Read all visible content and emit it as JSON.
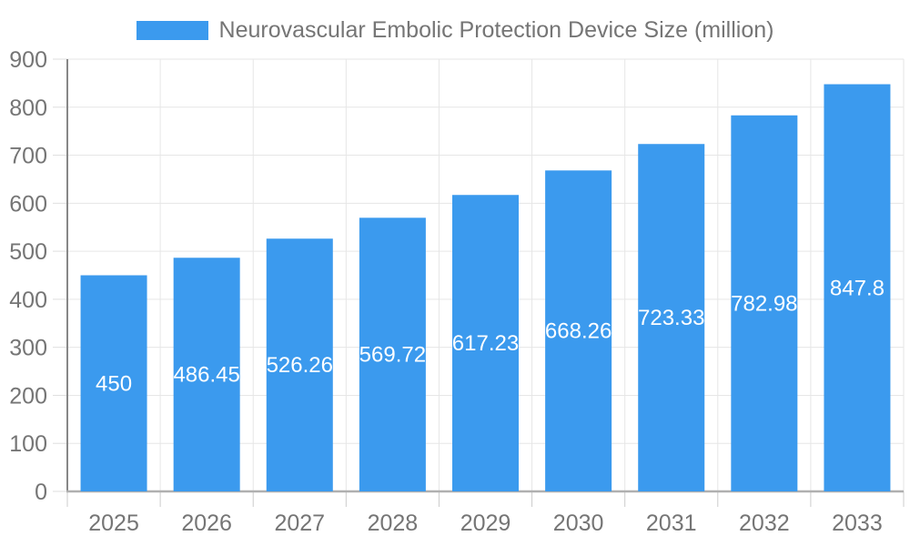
{
  "legend": {
    "label": "Neurovascular Embolic Protection Device Size (million)",
    "swatch_color": "#3b9aee"
  },
  "chart_data": {
    "type": "bar",
    "title": "Neurovascular Embolic Protection Device Size (million)",
    "categories": [
      "2025",
      "2026",
      "2027",
      "2028",
      "2029",
      "2030",
      "2031",
      "2032",
      "2033"
    ],
    "values": [
      450,
      486.45,
      526.26,
      569.72,
      617.23,
      668.26,
      723.33,
      782.98,
      847.8
    ],
    "xlabel": "",
    "ylabel": "",
    "ylim": [
      0,
      900
    ],
    "ytick_step": 100,
    "yticks": [
      "0",
      "100",
      "200",
      "300",
      "400",
      "500",
      "600",
      "700",
      "800",
      "900"
    ],
    "grid": "on",
    "value_label_position": "inside-center",
    "legend_position": "top-center",
    "colors": {
      "bar": "#3b9aee",
      "value_label": "#ffffff",
      "gridline": "#e6e6e6",
      "y_axis_line": "#878787",
      "x_axis_line": "#b0b0b0",
      "y_tick": "#dedede",
      "x_tick": "#cccccc",
      "axis_label": "#757575",
      "title": "#757575",
      "background": "#ffffff"
    }
  }
}
